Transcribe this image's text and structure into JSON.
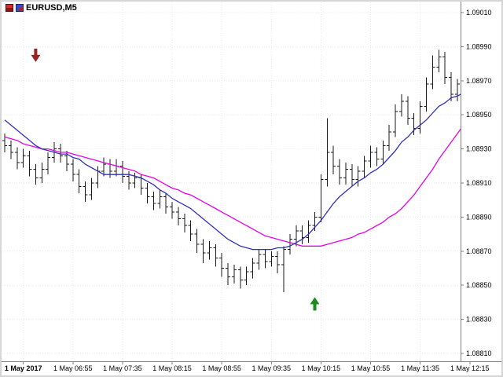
{
  "window": {
    "symbol_label": "EURUSD,M5"
  },
  "icons": [
    "flag-red-icon",
    "flag-blue-icon"
  ],
  "chart_data": {
    "type": "bar",
    "subtype": "ohlc-bars",
    "symbol": "EURUSD",
    "timeframe": "M5",
    "title": "EURUSD,M5",
    "grid": "on",
    "colors": {
      "bar": "#1a1a1a",
      "ma_fast": "#3030b8",
      "ma_slow": "#e800e8",
      "grid": "#e7e7e7",
      "axis": "#808080",
      "arrow_down": "#992222",
      "arrow_up": "#1a8a1a"
    },
    "price_axis": {
      "ticks": [
        "1.09010",
        "1.08990",
        "1.08970",
        "1.08950",
        "1.08930",
        "1.08910",
        "1.08890",
        "1.08870",
        "1.08850",
        "1.08830",
        "1.08810"
      ]
    },
    "time_axis": {
      "labels": [
        "1 May 2017",
        "1 May 06:55",
        "1 May 07:35",
        "1 May 08:15",
        "1 May 08:55",
        "1 May 09:35",
        "1 May 10:15",
        "1 May 10:55",
        "1 May 11:35",
        "1 May 12:15"
      ],
      "bar_indices": [
        3,
        11,
        19,
        27,
        35,
        43,
        51,
        59,
        67,
        75
      ]
    },
    "bars_format": [
      "open",
      "high",
      "low",
      "close"
    ],
    "bars": [
      [
        1.08935,
        1.08939,
        1.08928,
        1.08932
      ],
      [
        1.08932,
        1.08935,
        1.08924,
        1.08928
      ],
      [
        1.08928,
        1.08931,
        1.08918,
        1.08922
      ],
      [
        1.08922,
        1.0893,
        1.08919,
        1.08926
      ],
      [
        1.08926,
        1.08929,
        1.08914,
        1.08918
      ],
      [
        1.08918,
        1.08921,
        1.08909,
        1.08913
      ],
      [
        1.08913,
        1.08922,
        1.0891,
        1.08918
      ],
      [
        1.08918,
        1.08928,
        1.08915,
        1.08925
      ],
      [
        1.08925,
        1.08934,
        1.08922,
        1.0893
      ],
      [
        1.0893,
        1.08933,
        1.08922,
        1.08926
      ],
      [
        1.08926,
        1.08929,
        1.08917,
        1.08921
      ],
      [
        1.08921,
        1.08924,
        1.08911,
        1.08915
      ],
      [
        1.08915,
        1.08918,
        1.08904,
        1.08908
      ],
      [
        1.08908,
        1.08911,
        1.08899,
        1.08903
      ],
      [
        1.08903,
        1.08913,
        1.089,
        1.0891
      ],
      [
        1.0891,
        1.0892,
        1.08907,
        1.08917
      ],
      [
        1.08917,
        1.08925,
        1.08914,
        1.08921
      ],
      [
        1.08921,
        1.08924,
        1.08913,
        1.08917
      ],
      [
        1.08917,
        1.08924,
        1.08914,
        1.0892
      ],
      [
        1.0892,
        1.08923,
        1.0891,
        1.08914
      ],
      [
        1.08914,
        1.08917,
        1.08906,
        1.0891
      ],
      [
        1.0891,
        1.08916,
        1.08907,
        1.08913
      ],
      [
        1.08913,
        1.08915,
        1.08903,
        1.08907
      ],
      [
        1.08907,
        1.0891,
        1.08898,
        1.08902
      ],
      [
        1.08902,
        1.08905,
        1.08894,
        1.08898
      ],
      [
        1.08898,
        1.08906,
        1.08895,
        1.08902
      ],
      [
        1.08902,
        1.08904,
        1.08892,
        1.08896
      ],
      [
        1.08896,
        1.08899,
        1.08889,
        1.08893
      ],
      [
        1.08893,
        1.08896,
        1.08885,
        1.08889
      ],
      [
        1.08889,
        1.08892,
        1.08881,
        1.08885
      ],
      [
        1.08885,
        1.08888,
        1.08876,
        1.0888
      ],
      [
        1.0888,
        1.08883,
        1.08869,
        1.08874
      ],
      [
        1.08874,
        1.08877,
        1.08863,
        1.08869
      ],
      [
        1.08869,
        1.08876,
        1.08865,
        1.08872
      ],
      [
        1.08872,
        1.08874,
        1.08861,
        1.08866
      ],
      [
        1.08866,
        1.08869,
        1.08855,
        1.0886
      ],
      [
        1.0886,
        1.08863,
        1.0885,
        1.08855
      ],
      [
        1.08855,
        1.08862,
        1.08851,
        1.08859
      ],
      [
        1.08859,
        1.08861,
        1.08848,
        1.08853
      ],
      [
        1.08853,
        1.08861,
        1.0885,
        1.08858
      ],
      [
        1.08858,
        1.08866,
        1.08854,
        1.08863
      ],
      [
        1.08863,
        1.08871,
        1.08859,
        1.08868
      ],
      [
        1.08868,
        1.08871,
        1.0886,
        1.08864
      ],
      [
        1.08864,
        1.0887,
        1.08861,
        1.08867
      ],
      [
        1.08867,
        1.0887,
        1.08857,
        1.08862
      ],
      [
        1.08862,
        1.08873,
        1.08846,
        1.08871
      ],
      [
        1.08871,
        1.0888,
        1.08868,
        1.08877
      ],
      [
        1.08877,
        1.08885,
        1.08873,
        1.08882
      ],
      [
        1.08882,
        1.08885,
        1.08874,
        1.08878
      ],
      [
        1.08878,
        1.08888,
        1.08875,
        1.08885
      ],
      [
        1.08885,
        1.08893,
        1.08882,
        1.0889
      ],
      [
        1.0889,
        1.08915,
        1.08887,
        1.08912
      ],
      [
        1.08912,
        1.08948,
        1.08908,
        1.08928
      ],
      [
        1.08928,
        1.08932,
        1.08915,
        1.0892
      ],
      [
        1.0892,
        1.08924,
        1.08909,
        1.08913
      ],
      [
        1.08913,
        1.08922,
        1.08909,
        1.08918
      ],
      [
        1.08918,
        1.08921,
        1.08908,
        1.08912
      ],
      [
        1.08912,
        1.0892,
        1.08908,
        1.08917
      ],
      [
        1.08917,
        1.08926,
        1.08913,
        1.08923
      ],
      [
        1.08923,
        1.08932,
        1.08919,
        1.08928
      ],
      [
        1.08928,
        1.08931,
        1.0892,
        1.08924
      ],
      [
        1.08924,
        1.08935,
        1.08921,
        1.08932
      ],
      [
        1.08932,
        1.08944,
        1.08929,
        1.0894
      ],
      [
        1.0894,
        1.08956,
        1.08937,
        1.08952
      ],
      [
        1.08952,
        1.08962,
        1.08949,
        1.08958
      ],
      [
        1.08958,
        1.08961,
        1.08944,
        1.08948
      ],
      [
        1.08948,
        1.08951,
        1.08938,
        1.08942
      ],
      [
        1.08942,
        1.08958,
        1.08939,
        1.08955
      ],
      [
        1.08955,
        1.08972,
        1.08952,
        1.08968
      ],
      [
        1.08968,
        1.08985,
        1.08965,
        1.08978
      ],
      [
        1.08978,
        1.08988,
        1.08975,
        1.08984
      ],
      [
        1.08984,
        1.08987,
        1.08968,
        1.08972
      ],
      [
        1.08972,
        1.08975,
        1.08958,
        1.08962
      ],
      [
        1.08962,
        1.08971,
        1.08958,
        1.08968
      ],
      [
        1.08968,
        1.08978,
        1.08964,
        1.08975
      ]
    ],
    "ma_fast": {
      "name": "fast moving average",
      "values": [
        1.08947,
        1.08944,
        1.08941,
        1.08938,
        1.08935,
        1.08932,
        1.0893,
        1.08929,
        1.08928,
        1.08927,
        1.08927,
        1.08925,
        1.08924,
        1.08921,
        1.08919,
        1.08917,
        1.08915,
        1.08915,
        1.08915,
        1.08915,
        1.08915,
        1.08914,
        1.08913,
        1.08911,
        1.08909,
        1.08906,
        1.08904,
        1.08901,
        1.08899,
        1.08897,
        1.08895,
        1.08892,
        1.08889,
        1.08886,
        1.08883,
        1.0888,
        1.08877,
        1.08875,
        1.08873,
        1.08872,
        1.08871,
        1.08871,
        1.08871,
        1.08871,
        1.08872,
        1.08872,
        1.08873,
        1.08875,
        1.08877,
        1.0888,
        1.08884,
        1.08888,
        1.08893,
        1.08898,
        1.08902,
        1.08905,
        1.08908,
        1.08911,
        1.08913,
        1.08916,
        1.08918,
        1.08921,
        1.08925,
        1.08929,
        1.08934,
        1.08937,
        1.08941,
        1.08944,
        1.08947,
        1.08951,
        1.08955,
        1.08957,
        1.0896,
        1.08961,
        1.08963
      ]
    },
    "ma_slow": {
      "name": "slow moving average",
      "values": [
        1.08937,
        1.08936,
        1.08935,
        1.08933,
        1.08932,
        1.08931,
        1.0893,
        1.0893,
        1.08929,
        1.08928,
        1.08928,
        1.08927,
        1.08926,
        1.08925,
        1.08924,
        1.08923,
        1.08922,
        1.08921,
        1.0892,
        1.08919,
        1.08918,
        1.08917,
        1.08915,
        1.08914,
        1.08913,
        1.08911,
        1.08909,
        1.08907,
        1.08906,
        1.08904,
        1.08903,
        1.08901,
        1.08899,
        1.08897,
        1.08895,
        1.08893,
        1.08891,
        1.08889,
        1.08887,
        1.08885,
        1.08883,
        1.08881,
        1.08879,
        1.08878,
        1.08877,
        1.08876,
        1.08875,
        1.08874,
        1.08873,
        1.08873,
        1.08873,
        1.08873,
        1.08874,
        1.08875,
        1.08876,
        1.08877,
        1.08878,
        1.0888,
        1.08881,
        1.08883,
        1.08885,
        1.08887,
        1.0889,
        1.08892,
        1.08895,
        1.08899,
        1.08903,
        1.08908,
        1.08913,
        1.08918,
        1.08924,
        1.08929,
        1.08934,
        1.08939,
        1.08944
      ]
    },
    "markers": [
      {
        "shape": "arrow-down",
        "name": "sell-signal-arrow",
        "color": "#992222",
        "bar": 5,
        "price": 1.08981
      },
      {
        "shape": "arrow-up",
        "name": "buy-signal-arrow",
        "color": "#1a8a1a",
        "bar": 50,
        "price": 1.08843
      }
    ]
  }
}
